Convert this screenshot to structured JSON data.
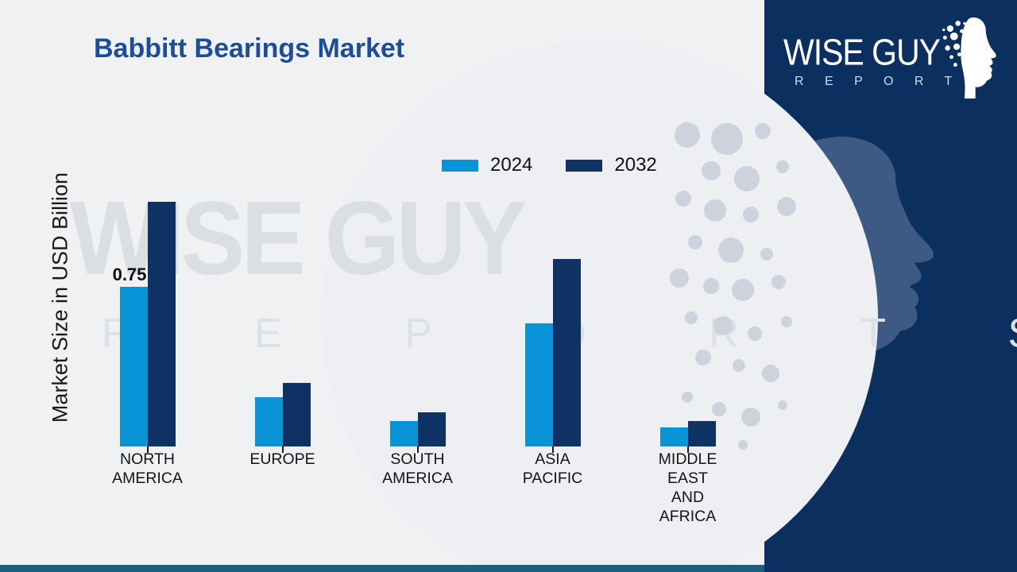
{
  "title": {
    "text": "Babbitt Bearings Market"
  },
  "colors": {
    "title": "#1b4d9b",
    "bar_2024": "#0994d8",
    "bar_2032": "#0e3263",
    "side_panel": "#0b2f5f",
    "footer_strip": "#1d5f80",
    "background": "#f0f1f3"
  },
  "watermark": {
    "line1": "WISE GUY",
    "line2": "R E P O R T S"
  },
  "logo": {
    "line1": "WISE GUY",
    "line2": "R E P O R T S",
    "icon": "head-profile-dots-icon"
  },
  "chart_data": {
    "type": "bar",
    "title": "Babbitt Bearings Market",
    "xlabel": "",
    "ylabel": "Market Size in USD Billion",
    "categories": [
      "NORTH AMERICA",
      "EUROPE",
      "SOUTH AMERICA",
      "ASIA PACIFIC",
      "MIDDLE EAST AND AFRICA"
    ],
    "category_lines": [
      [
        "NORTH",
        "AMERICA"
      ],
      [
        "EUROPE"
      ],
      [
        "SOUTH",
        "AMERICA"
      ],
      [
        "ASIA",
        "PACIFIC"
      ],
      [
        "MIDDLE",
        "EAST",
        "AND",
        "AFRICA"
      ]
    ],
    "series": [
      {
        "name": "2024",
        "color": "#0994d8",
        "values": [
          0.75,
          0.23,
          0.12,
          0.58,
          0.09
        ]
      },
      {
        "name": "2032",
        "color": "#0e3263",
        "values": [
          1.15,
          0.3,
          0.16,
          0.88,
          0.12
        ]
      }
    ],
    "value_labels": [
      {
        "category": "NORTH AMERICA",
        "series": "2024",
        "text": "0.75"
      }
    ],
    "ylim": [
      0,
      1.25
    ],
    "grid": false,
    "legend_position": "top-center"
  }
}
